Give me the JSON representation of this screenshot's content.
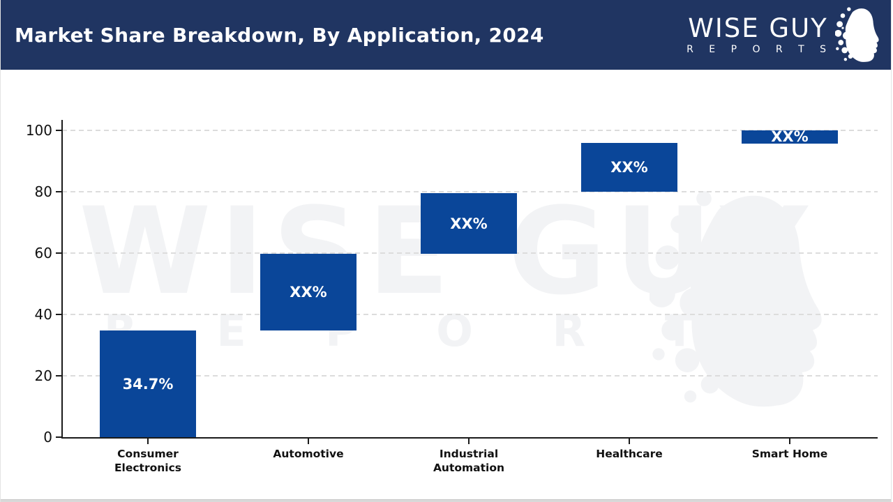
{
  "header": {
    "title": "Market Share Breakdown, By Application, 2024",
    "background_color": "#203562",
    "logo": {
      "name": "WISE GUY",
      "sub": "R E P O R T S"
    }
  },
  "watermark": {
    "line1": "WISE GUY",
    "line2": "R E P O R T S"
  },
  "chart_data": {
    "type": "bar",
    "subtype": "waterfall-style floating percentage bars",
    "title": "Market Share Breakdown, By Application, 2024",
    "xlabel": "",
    "ylabel": "",
    "ylim": [
      0,
      105
    ],
    "yticks": [
      0,
      20,
      40,
      60,
      80,
      100
    ],
    "grid": "horizontal dashed gridlines at each y tick",
    "legend": "none",
    "bar_color": "#0a4699",
    "bar_label_color": "#ffffff",
    "categories": [
      "Consumer Electronics",
      "Automotive",
      "Industrial Automation",
      "Healthcare",
      "Smart Home"
    ],
    "segments": [
      {
        "category": "Consumer Electronics",
        "lines": [
          "Consumer",
          "Electronics"
        ],
        "start": 0,
        "end": 34.7,
        "label": "34.7%"
      },
      {
        "category": "Automotive",
        "lines": [
          "Automotive"
        ],
        "start": 34.7,
        "end": 59.8,
        "label": "XX%"
      },
      {
        "category": "Industrial Automation",
        "lines": [
          "Industrial",
          "Automation"
        ],
        "start": 59.8,
        "end": 79.5,
        "label": "XX%"
      },
      {
        "category": "Healthcare",
        "lines": [
          "Healthcare"
        ],
        "start": 79.9,
        "end": 95.8,
        "label": "XX%"
      },
      {
        "category": "Smart Home",
        "lines": [
          "Smart Home"
        ],
        "start": 95.7,
        "end": 100,
        "label": "XX%"
      }
    ]
  }
}
